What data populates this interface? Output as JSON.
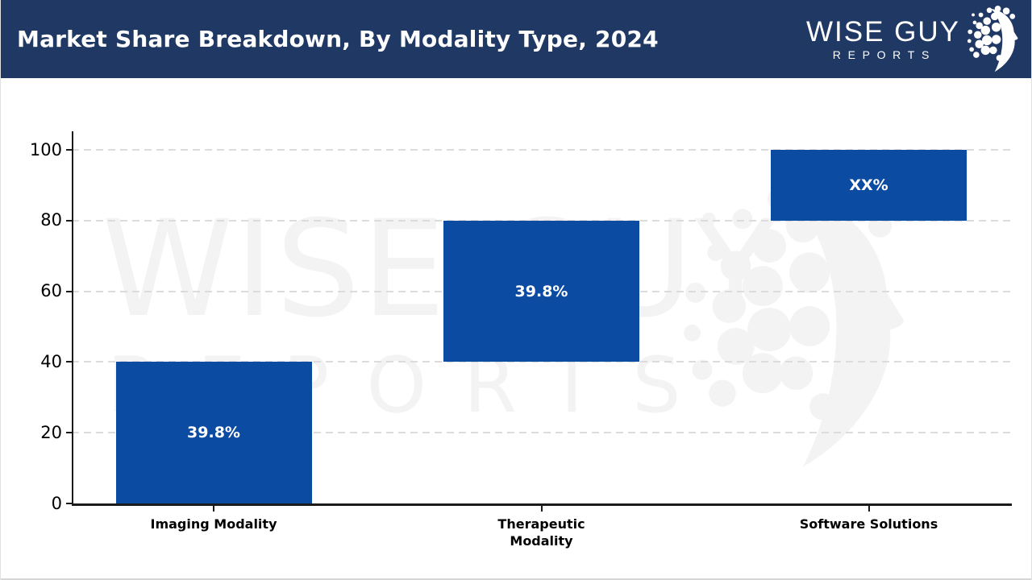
{
  "header": {
    "title": "Market Share Breakdown, By Modality Type, 2024",
    "brand_line1": "WISE GUY",
    "brand_line2": "REPORTS",
    "bg_color": "#1f3864"
  },
  "watermark": {
    "line1": "WISE GUY",
    "line2": "REPORTS"
  },
  "chart_data": {
    "type": "bar",
    "subtype": "floating-segment-waterfall",
    "title": "Market Share Breakdown, By Modality Type, 2024",
    "categories": [
      "Imaging Modality",
      "Therapeutic Modality",
      "Software Solutions"
    ],
    "category_display": [
      "Imaging Modality",
      "Therapeutic\nModality",
      "Software Solutions"
    ],
    "segments": [
      {
        "category": "Imaging Modality",
        "start": 0,
        "end": 40,
        "label": "39.8%"
      },
      {
        "category": "Therapeutic Modality",
        "start": 40,
        "end": 80,
        "label": "39.8%"
      },
      {
        "category": "Software Solutions",
        "start": 80,
        "end": 100,
        "label": "XX%"
      }
    ],
    "bar_labels": [
      "39.8%",
      "39.8%",
      "XX%"
    ],
    "yticks": [
      0,
      20,
      40,
      60,
      80,
      100
    ],
    "ylim": [
      0,
      105
    ],
    "xlabel": "",
    "ylabel": "",
    "grid": "horizontal-dashed",
    "legend": "none",
    "bar_color": "#0b4ba1",
    "label_color": "#ffffff",
    "gridline_color": "#dcdcdc"
  }
}
